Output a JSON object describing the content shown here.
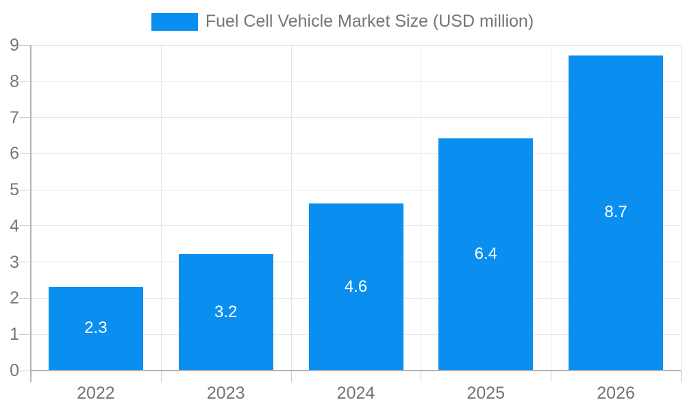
{
  "chart_data": {
    "type": "bar",
    "title": "Fuel Cell Vehicle Market Size (USD million)",
    "legend": {
      "label": "Fuel Cell Vehicle Market Size (USD million)",
      "position": "top"
    },
    "categories": [
      "2022",
      "2023",
      "2024",
      "2025",
      "2026"
    ],
    "values": [
      2.3,
      3.2,
      4.6,
      6.4,
      8.7
    ],
    "bar_labels": [
      "2.3",
      "3.2",
      "4.6",
      "6.4",
      "8.7"
    ],
    "xlabel": "",
    "ylabel": "",
    "ylim": [
      0,
      9
    ],
    "yticks": [
      0,
      1,
      2,
      3,
      4,
      5,
      6,
      7,
      8,
      9
    ],
    "grid": true
  },
  "colors": {
    "bar": "#0a8ff0",
    "bar_label": "#ffffff",
    "axis_text": "#757575",
    "grid_line": "#e6e6e6",
    "axis_line": "#b3b3b3",
    "tick": "#cccccc",
    "background": "#ffffff"
  }
}
